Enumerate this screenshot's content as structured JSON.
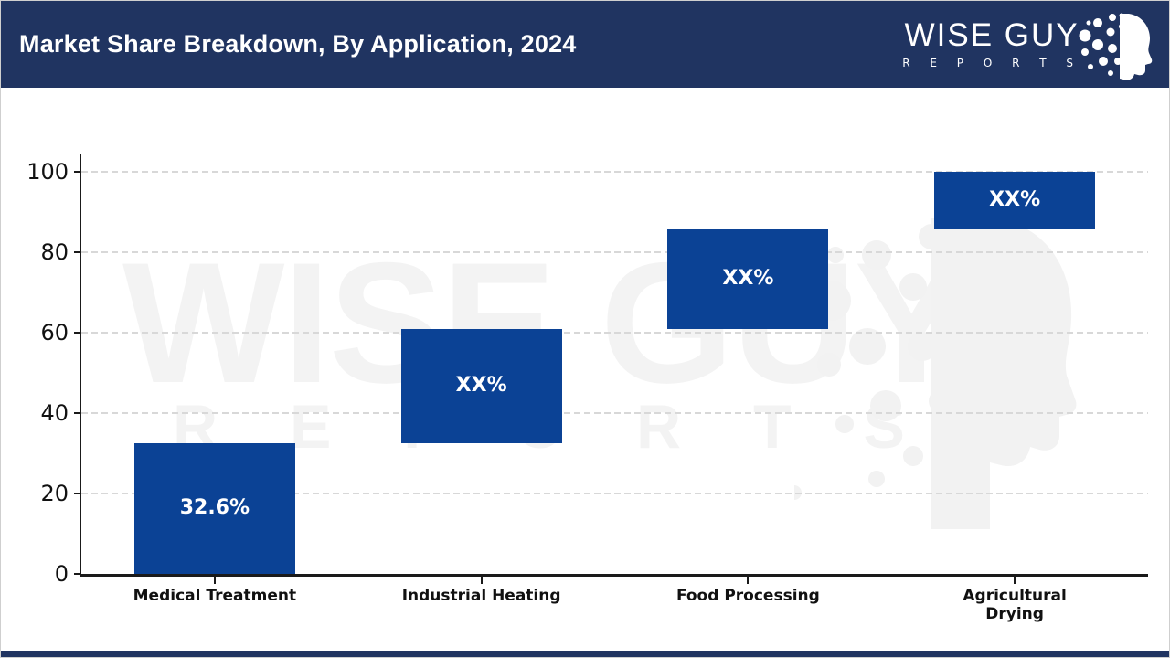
{
  "header": {
    "title": "Market Share Breakdown, By Application, 2024",
    "logo": {
      "name": "WISE GUY",
      "tagline": "R E P O R T S"
    }
  },
  "watermark": {
    "big_text": "WISE GUY",
    "small_text": "R E P O R T S"
  },
  "chart_data": {
    "type": "bar",
    "subtype": "floating_segment_waterfall",
    "title": "Market Share Breakdown, By Application, 2024",
    "categories": [
      "Medical Treatment",
      "Industrial Heating",
      "Food Processing",
      "Agricultural Drying"
    ],
    "category_label_lines": [
      [
        "Medical Treatment"
      ],
      [
        "Industrial Heating"
      ],
      [
        "Food Processing"
      ],
      [
        "Agricultural",
        "Drying"
      ]
    ],
    "segments": [
      {
        "category": "Medical Treatment",
        "start": 0,
        "end": 32.6,
        "label": "32.6%"
      },
      {
        "category": "Industrial Heating",
        "start": 32.6,
        "end": 61,
        "label": "XX%"
      },
      {
        "category": "Food Processing",
        "start": 61,
        "end": 85.7,
        "label": "XX%"
      },
      {
        "category": "Agricultural Drying",
        "start": 85.7,
        "end": 100,
        "label": "XX%"
      }
    ],
    "ylim": [
      0,
      100
    ],
    "yticks": [
      0,
      20,
      40,
      60,
      80,
      100
    ],
    "grid": {
      "horizontal": true,
      "style": "dashed"
    },
    "legend": null,
    "colors": {
      "bar": "#0b4295",
      "bar_label": "#ffffff",
      "grid": "#d8d8d8",
      "axis": "#1a1a1a"
    }
  },
  "colors": {
    "header_bg": "#203461",
    "footer_bg": "#203461",
    "watermark": "#f3f3f3",
    "page_bg": "#ffffff"
  }
}
